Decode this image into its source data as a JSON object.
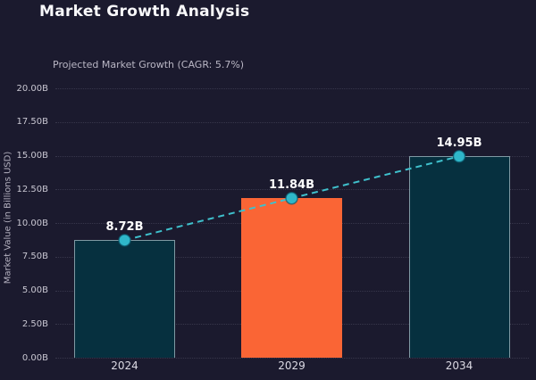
{
  "chart_data": {
    "type": "bar",
    "title": "Market Growth Analysis",
    "subtitle": "Projected Market Growth (CAGR: 5.7%)",
    "categories": [
      "2024",
      "2029",
      "2034"
    ],
    "values": [
      8.72,
      11.84,
      14.95
    ],
    "value_labels": [
      "8.72B",
      "11.84B",
      "14.95B"
    ],
    "bar_colors": [
      "#06303f",
      "#fa6535",
      "#06303f"
    ],
    "xlabel": "",
    "ylabel": "Market Value (in Billions USD)",
    "ylim": [
      0,
      20
    ],
    "ytick_labels": [
      "0.00B",
      "2.50B",
      "5.00B",
      "7.50B",
      "10.00B",
      "12.50B",
      "15.00B",
      "17.50B",
      "20.00B"
    ],
    "grid": true,
    "legend": "none",
    "overlay_line": {
      "type": "dashed-trend",
      "connects": "bar-tops",
      "line_color": "#3fc0cc",
      "marker_color": "#2fb7c9"
    },
    "colors": {
      "background": "#1b1a2e",
      "bar_default": "#06303f",
      "bar_highlight": "#fa6535",
      "title_text": "#f8f8fa",
      "subtitle_text": "#b9b6c4",
      "tick_text": "#c9c7d2",
      "value_label_text": "#ffffff"
    }
  }
}
